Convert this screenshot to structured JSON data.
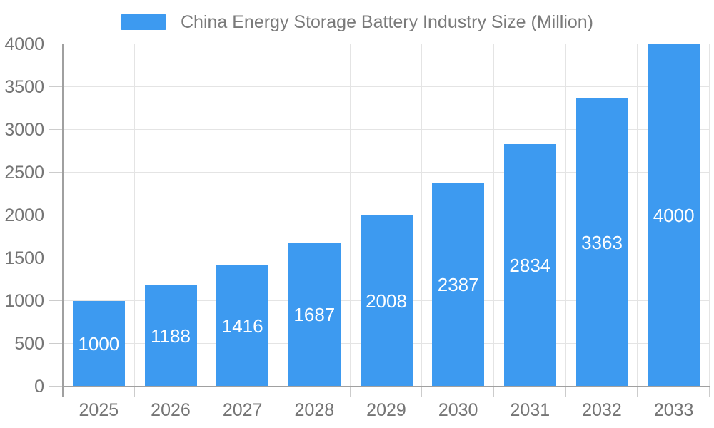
{
  "chart_data": {
    "type": "bar",
    "title": "China Energy Storage Battery Industry Size (Million)",
    "legend_label": "China Energy Storage Battery Industry Size (Million)",
    "legend_position": "top-center",
    "categories": [
      "2025",
      "2026",
      "2027",
      "2028",
      "2029",
      "2030",
      "2031",
      "2032",
      "2033"
    ],
    "values": [
      1000,
      1188,
      1416,
      1687,
      2008,
      2387,
      2834,
      3363,
      4000
    ],
    "xlabel": "",
    "ylabel": "",
    "ylim": [
      0,
      4000
    ],
    "ytick_step": 500,
    "yticks": [
      0,
      500,
      1000,
      1500,
      2000,
      2500,
      3000,
      3500,
      4000
    ],
    "grid": true,
    "bar_value_labels_inside": true,
    "colors": {
      "bar": "#3D9AF0",
      "bar_label": "#FFFFFF",
      "gridline": "#E4E4E4",
      "axis_line": "#A0A0A0",
      "tick_mark": "#CCCCCC",
      "axis_label": "#757575",
      "legend_text": "#7A7A7A",
      "background": "#FFFFFF"
    }
  }
}
